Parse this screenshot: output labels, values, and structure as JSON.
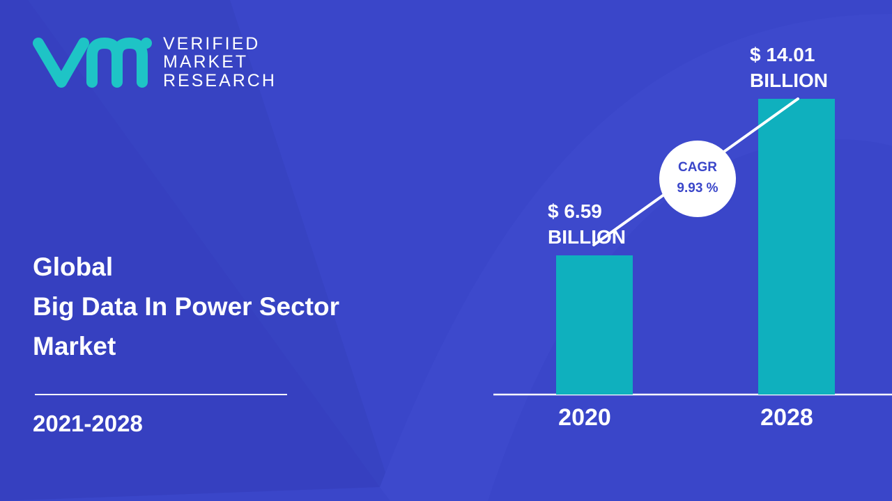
{
  "logo": {
    "lines": [
      "VERIFIED",
      "MARKET",
      "RESEARCH"
    ]
  },
  "title_lines": [
    "Global",
    "Big Data In Power Sector",
    "Market"
  ],
  "period": "2021-2028",
  "cagr": {
    "label": "CAGR",
    "value_label": "9.93 %"
  },
  "chart_data": {
    "type": "bar",
    "categories": [
      "2020",
      "2028"
    ],
    "values": [
      6.59,
      14.01
    ],
    "value_labels": [
      "$ 6.59 BILLION",
      "$ 14.01 BILLION"
    ],
    "color": "#0fb0be",
    "ylim": [
      0,
      15
    ]
  }
}
